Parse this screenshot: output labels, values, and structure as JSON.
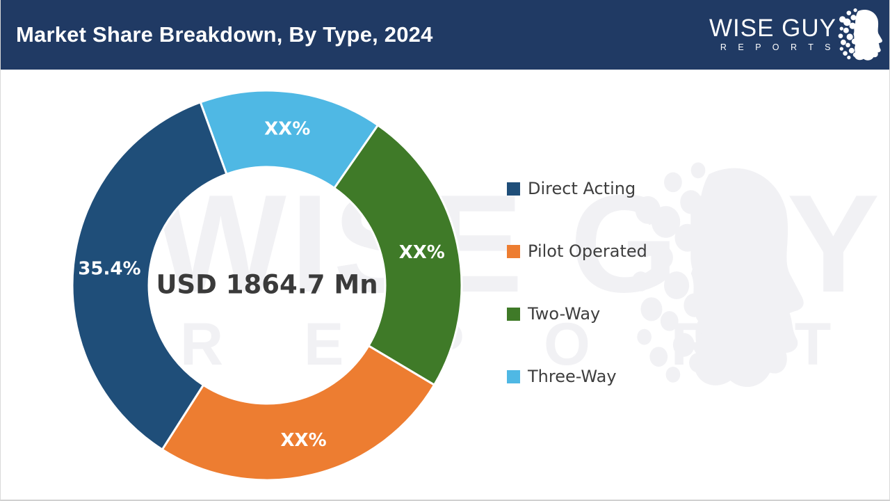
{
  "header": {
    "title": "Market Share Breakdown, By Type, 2024",
    "logo": {
      "line1": "WISE GUY",
      "line2": "R E P O R T S"
    }
  },
  "watermark": {
    "line1": "WISE GUY",
    "line2": "R E P O R T S"
  },
  "colors": {
    "header_bg": "#203A64",
    "watermark": "#F1F1F4",
    "center_text": "#3A3A3A",
    "legend_text": "#3E3E3E",
    "segment_separator": "#FFFFFF",
    "page_border": "#D9D9D9"
  },
  "chart_data": {
    "type": "pie",
    "subtype": "donut",
    "title": "Market Share Breakdown, By Type, 2024",
    "center_label": "USD 1864.7 Mn",
    "unit": "percent share",
    "start_angle_deg": 110,
    "direction": "clockwise",
    "inner_radius_ratio": 0.607,
    "legend_position": "right",
    "segments": [
      {
        "name": "Direct Acting",
        "value": 35.4,
        "label": "35.4%",
        "color": "#1F4E79"
      },
      {
        "name": "Pilot Operated",
        "value": 25.5,
        "label": "XX%",
        "color": "#ED7D31"
      },
      {
        "name": "Two-Way",
        "value": 23.9,
        "label": "XX%",
        "color": "#3F7A28"
      },
      {
        "name": "Three-Way",
        "value": 15.2,
        "label": "XX%",
        "color": "#4FB8E4"
      }
    ],
    "draw_order": [
      3,
      2,
      1,
      0
    ]
  }
}
